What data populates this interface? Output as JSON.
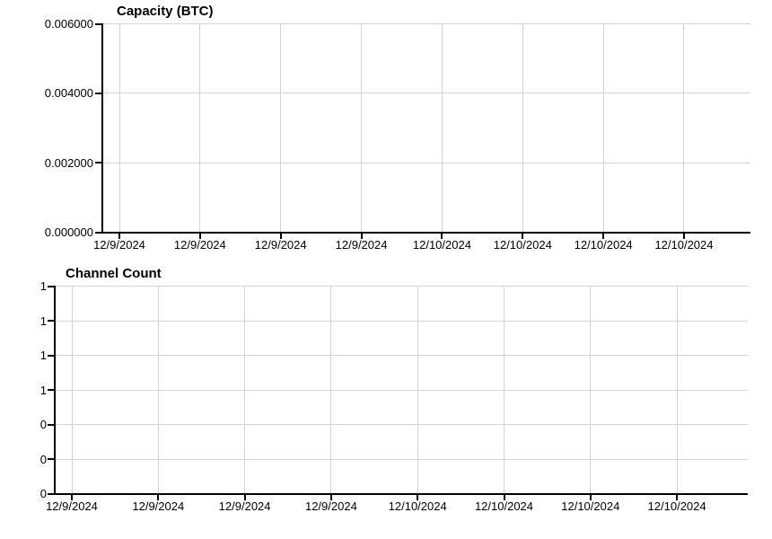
{
  "page": {
    "background_color": "#ffffff",
    "text_color": "#000000"
  },
  "chart_data": [
    {
      "type": "line",
      "title": "Capacity (BTC)",
      "xlabel": "",
      "ylabel": "",
      "x_axis_type": "time",
      "x_tick_labels": [
        "12/9/2024",
        "12/9/2024",
        "12/9/2024",
        "12/9/2024",
        "12/10/2024",
        "12/10/2024",
        "12/10/2024",
        "12/10/2024"
      ],
      "y_tick_labels": [
        "0.006000",
        "0.004000",
        "0.002000",
        "0.000000"
      ],
      "ylim": [
        0,
        0.006
      ],
      "y_tick_step": 0.002,
      "series": [],
      "grid": true,
      "legend": "none",
      "colors": {
        "axis": "#000000",
        "gridline": "#d3d3d3",
        "title": "#000000",
        "tick_text": "#000000"
      }
    },
    {
      "type": "line",
      "title": "Channel Count",
      "xlabel": "",
      "ylabel": "",
      "x_axis_type": "time",
      "x_tick_labels": [
        "12/9/2024",
        "12/9/2024",
        "12/9/2024",
        "12/9/2024",
        "12/10/2024",
        "12/10/2024",
        "12/10/2024",
        "12/10/2024"
      ],
      "y_tick_labels": [
        "1",
        "1",
        "1",
        "1",
        "0",
        "0",
        "0"
      ],
      "ylim": [
        0,
        1.2
      ],
      "y_tick_step": 0.2,
      "series": [],
      "grid": true,
      "legend": "none",
      "colors": {
        "axis": "#000000",
        "gridline": "#d3d3d3",
        "title": "#000000",
        "tick_text": "#000000"
      }
    }
  ]
}
